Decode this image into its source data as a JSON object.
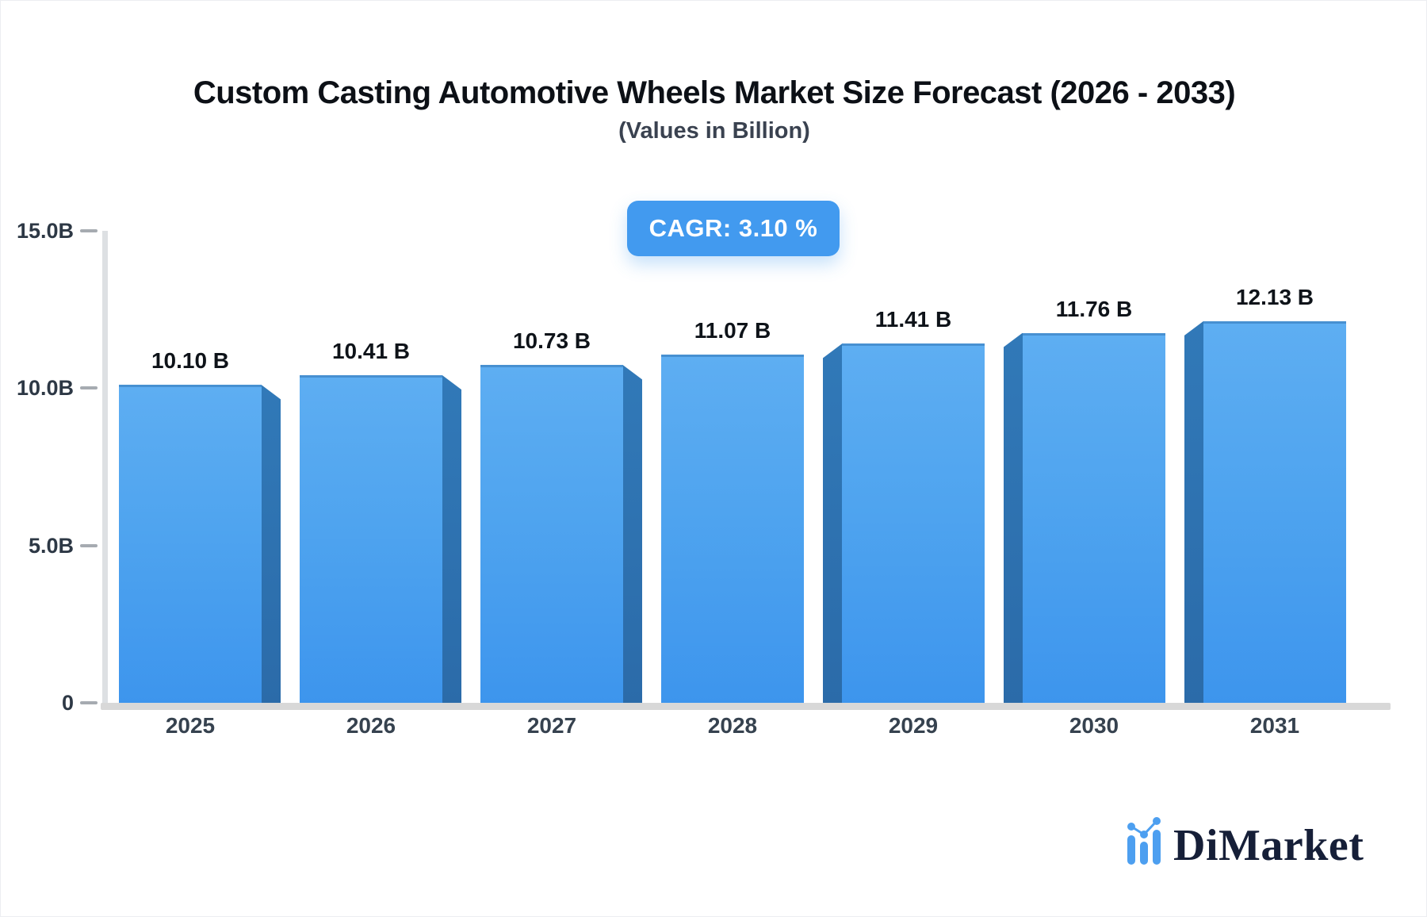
{
  "cagr_label": "CAGR: 3.10 %",
  "chart_data": {
    "type": "bar",
    "title": "Custom Casting Automotive Wheels Market Size Forecast (2026 - 2033)",
    "subtitle": "(Values in Billion)",
    "cagr": "3.10%",
    "categories": [
      "2025",
      "2026",
      "2027",
      "2028",
      "2029",
      "2030",
      "2031"
    ],
    "values": [
      10.1,
      10.41,
      10.73,
      11.07,
      11.41,
      11.76,
      12.13
    ],
    "value_labels": [
      "10.10 B",
      "10.41 B",
      "10.73 B",
      "11.07 B",
      "11.41 B",
      "11.76 B",
      "12.13 B"
    ],
    "xlabel": "",
    "ylabel": "",
    "ylim": [
      0,
      15
    ],
    "yticks": [
      {
        "label": "0",
        "value": 0
      },
      {
        "label": "5.0B",
        "value": 5
      },
      {
        "label": "10.0B",
        "value": 10
      },
      {
        "label": "15.0B",
        "value": 15
      }
    ],
    "grid": false,
    "legend": "none",
    "bar_face_color": "#4FA4EF",
    "bar_side_color": "#2E72B0",
    "axis_color": "#DDE0E3"
  },
  "badge": {
    "background": "#429AEF",
    "text_color": "#FFFFFF"
  },
  "logo": {
    "text": "DiMarket",
    "icon": "bar-chart-icon",
    "icon_color": "#4D9FF0",
    "text_color": "#161F38"
  }
}
